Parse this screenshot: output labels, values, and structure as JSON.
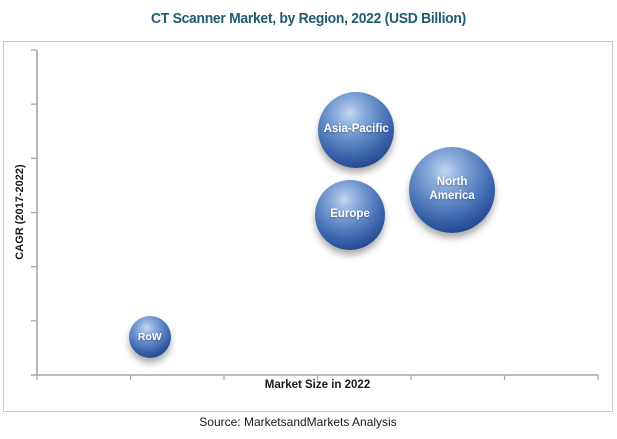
{
  "title": "CT Scanner Market, by Region, 2022 (USD Billion)",
  "source_note": "Source: MarketsandMarkets Analysis",
  "colors": {
    "title_text": "#1F5C70",
    "axis_line": "#A6A6A6",
    "plot_border": "#C9C9C9",
    "bubble_highlight": "#C3D7F0",
    "bubble_mid": "#3A63AB",
    "bubble_dark_rim": "#102749",
    "bubble_label_text": "#FFFFFF"
  },
  "chart_data": {
    "type": "scatter",
    "subtype": "bubble",
    "title": "CT Scanner Market, by Region, 2022 (USD Billion)",
    "xlabel": "Market Size in 2022",
    "ylabel": "CAGR (2017-2022)",
    "grid": false,
    "legend_position": "none",
    "axis_numeric_labels_visible": false,
    "x_tick_count": 7,
    "y_tick_count": 7,
    "note": "Axes have unlabeled ticks; bubble positions estimated as percent of plot area, bubble size in screen px",
    "series": [
      {
        "name": "Asia-Pacific",
        "label": "Asia-Pacific",
        "x_pct": 56.9,
        "y_pct": 75.4,
        "radius_px": 38,
        "font_px": 11.5
      },
      {
        "name": "North America",
        "label": "North\nAmerica",
        "x_pct": 74.0,
        "y_pct": 56.9,
        "radius_px": 43,
        "font_px": 11.5
      },
      {
        "name": "Europe",
        "label": "Europe",
        "x_pct": 55.8,
        "y_pct": 49.2,
        "radius_px": 35,
        "font_px": 11.5
      },
      {
        "name": "RoW",
        "label": "RoW",
        "x_pct": 20.1,
        "y_pct": 11.7,
        "radius_px": 21,
        "font_px": 10.5
      }
    ]
  }
}
